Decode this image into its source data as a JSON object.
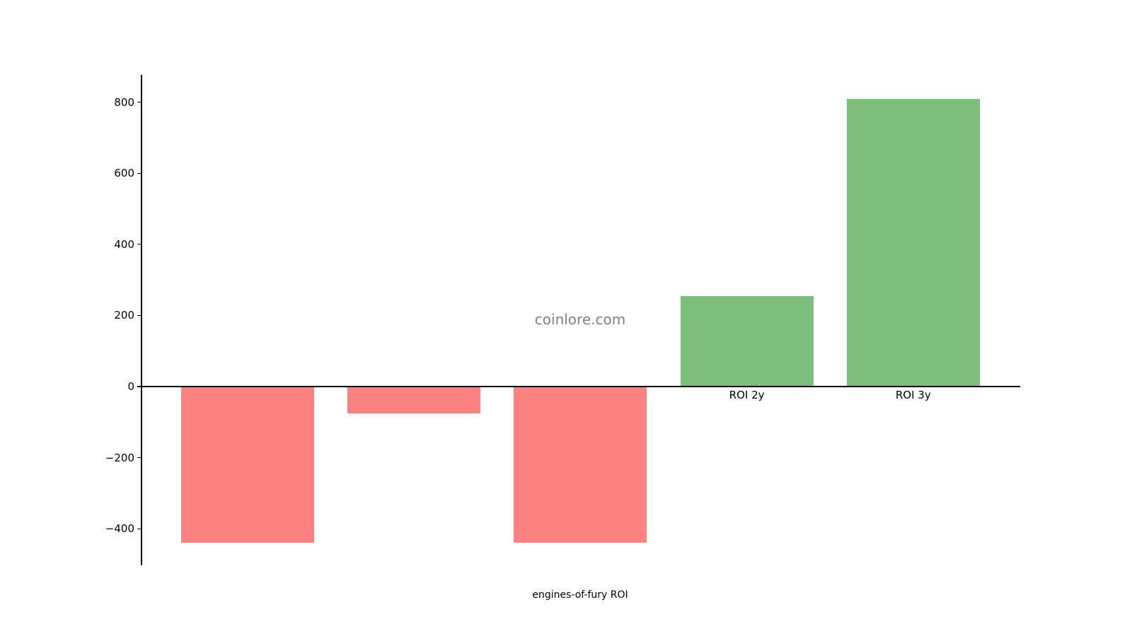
{
  "watermark": "coinlore.com",
  "chart_data": {
    "type": "bar",
    "title": "",
    "xlabel": "engines-of-fury ROI",
    "ylabel": "",
    "categories": [
      "",
      "",
      "",
      "ROI 2y",
      "ROI 3y"
    ],
    "values": [
      -440,
      -75,
      -440,
      255,
      810
    ],
    "y_ticks": [
      800,
      600,
      400,
      200,
      0,
      -200,
      -400
    ],
    "y_tick_labels": [
      "800",
      "600",
      "400",
      "200",
      "0",
      "−200",
      "−400"
    ],
    "ylim": [
      -500,
      880
    ],
    "grid": false,
    "legend": false,
    "colors": {
      "positive": "#7cbe7c",
      "negative": "#fc8282",
      "axis": "#000000",
      "text": "#000000",
      "watermark": "#808080"
    }
  }
}
